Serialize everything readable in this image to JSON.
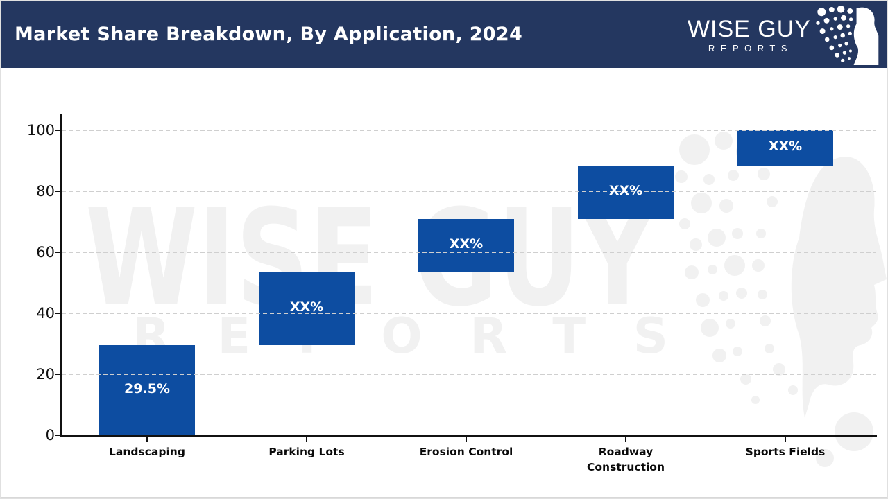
{
  "header": {
    "title": "Market Share Breakdown, By Application, 2024"
  },
  "logo": {
    "line1": "WISE GUY",
    "line2": "REPORTS"
  },
  "watermark": {
    "line1": "WISE GUY",
    "line2": "REPORTS"
  },
  "colors": {
    "header_bg": "#243760",
    "bar": "#0d4da1",
    "bar_label": "#ffffff",
    "gridline": "#cfcfcf",
    "axis": "#111111",
    "watermark": "#f1f1f1"
  },
  "chart_data": {
    "type": "bar",
    "subtype": "floating-waterfall",
    "title": "Market Share Breakdown, By Application, 2024",
    "categories": [
      "Landscaping",
      "Parking Lots",
      "Erosion Control",
      "Roadway Construction",
      "Sports Fields"
    ],
    "segments": [
      {
        "category": "Landscaping",
        "start": 0,
        "end": 29.5,
        "label": "29.5%"
      },
      {
        "category": "Parking Lots",
        "start": 29.5,
        "end": 53.5,
        "label": "XX%"
      },
      {
        "category": "Erosion Control",
        "start": 53.5,
        "end": 71,
        "label": "XX%"
      },
      {
        "category": "Roadway Construction",
        "start": 71,
        "end": 88.5,
        "label": "XX%"
      },
      {
        "category": "Sports Fields",
        "start": 88.5,
        "end": 100,
        "label": "XX%"
      }
    ],
    "yticks": [
      0,
      20,
      40,
      60,
      80,
      100
    ],
    "ylim": [
      0,
      105
    ],
    "xlabel": "",
    "ylabel": "",
    "grid": "dashed-horizontal",
    "legend": "none"
  }
}
